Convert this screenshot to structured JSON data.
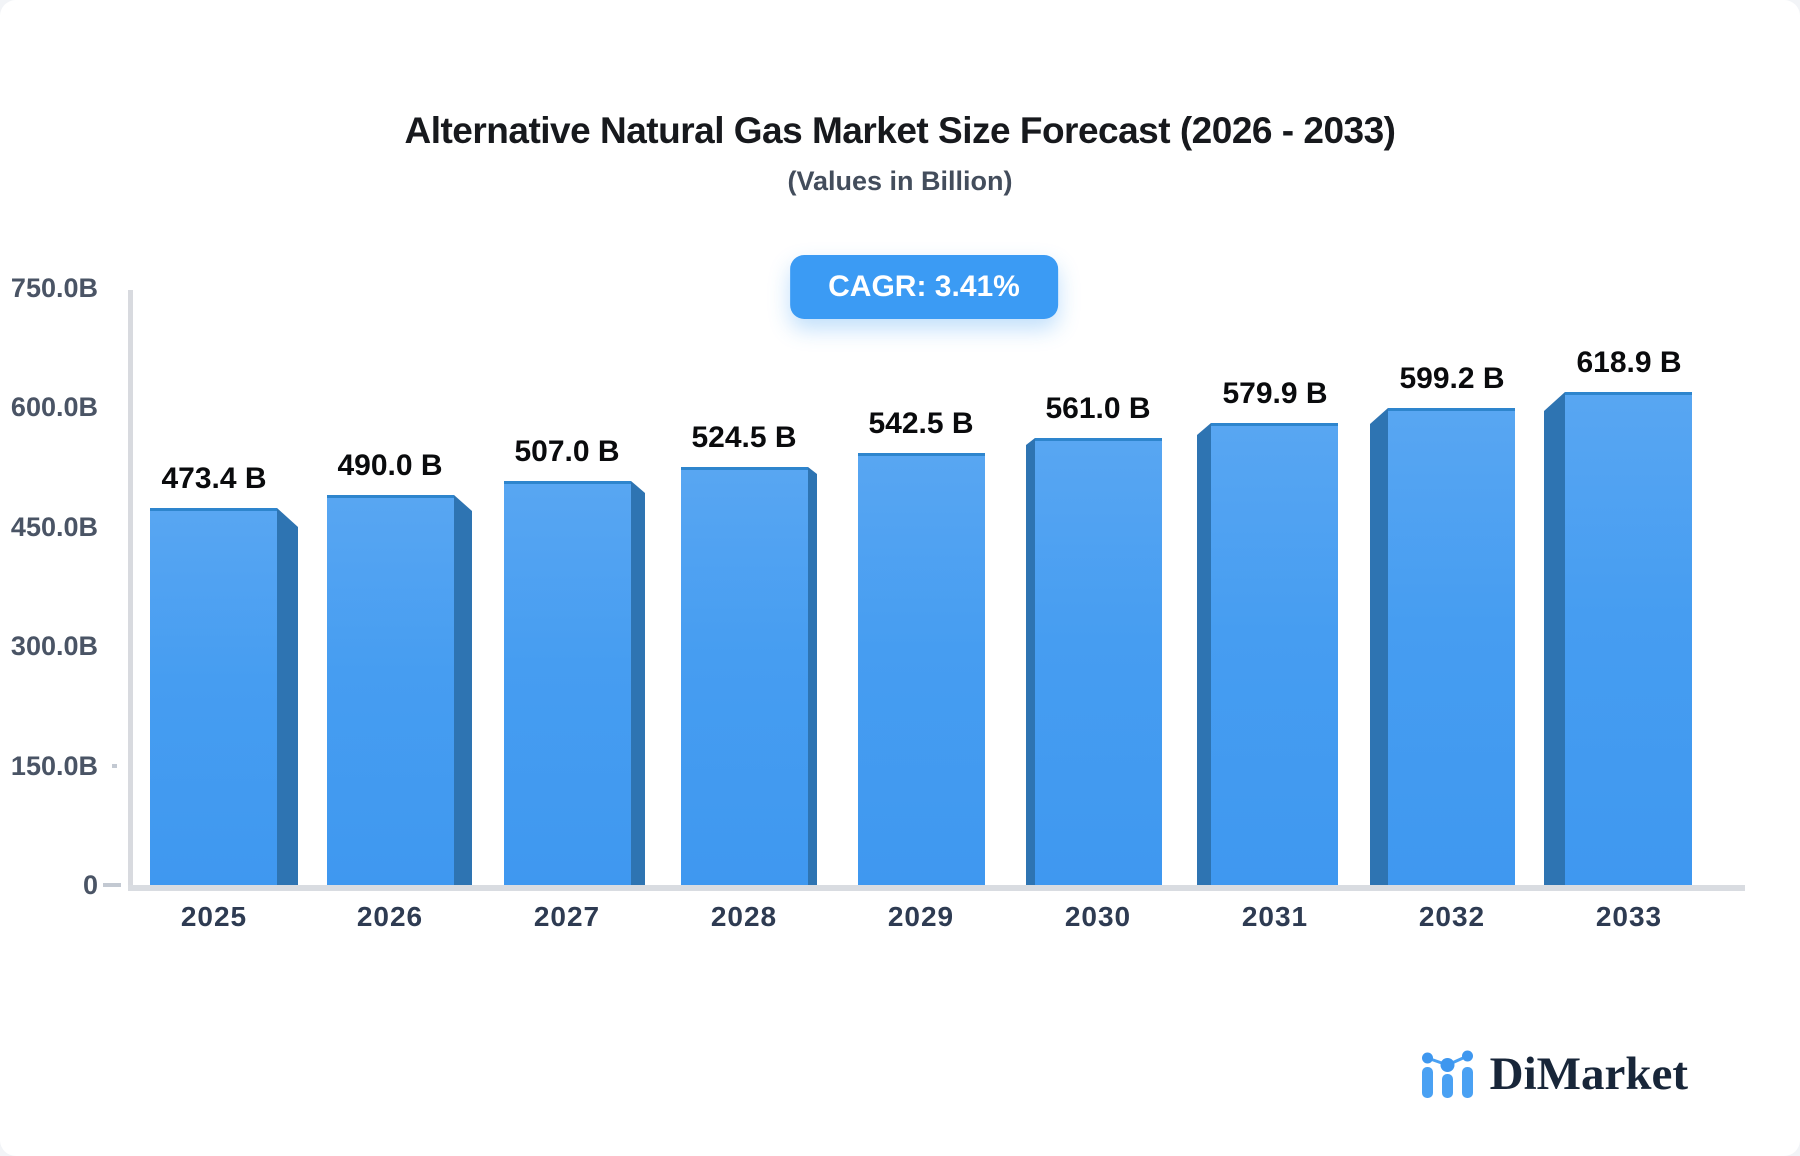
{
  "header": {
    "title": "Alternative Natural Gas Market Size Forecast (2026 - 2033)",
    "subtitle": "(Values in Billion)",
    "cagr_label": "CAGR: 3.41%"
  },
  "chart_data": {
    "type": "bar",
    "title": "Alternative Natural Gas Market Size Forecast (2026 - 2033)",
    "subtitle": "(Values in Billion)",
    "cagr": "3.41%",
    "categories": [
      "2025",
      "2026",
      "2027",
      "2028",
      "2029",
      "2030",
      "2031",
      "2032",
      "2033"
    ],
    "values": [
      473.4,
      490.0,
      507.0,
      524.5,
      542.5,
      561.0,
      579.9,
      599.2,
      618.9
    ],
    "value_labels": [
      "473.4 B",
      "490.0 B",
      "507.0 B",
      "524.5 B",
      "542.5 B",
      "561.0 B",
      "579.9 B",
      "599.2 B",
      "618.9 B"
    ],
    "y_ticks": [
      {
        "value": 0,
        "label": "0"
      },
      {
        "value": 150,
        "label": "150.0B"
      },
      {
        "value": 300,
        "label": "300.0B"
      },
      {
        "value": 450,
        "label": "450.0B"
      },
      {
        "value": 600,
        "label": "600.0B"
      },
      {
        "value": 750,
        "label": "750.0B"
      }
    ],
    "ylim": [
      0,
      750
    ],
    "xlabel": "",
    "ylabel": "",
    "grid": false,
    "legend": false,
    "style": "pseudo-3d bars, perspective side faces toward center bar",
    "colors": {
      "bar_face_top": "#58a6f2",
      "bar_face_bottom": "#3f98f0",
      "bar_top_edge": "#2e85cd",
      "bar_side": "#2e74b2",
      "axis_line": "#d8dadf",
      "y_tick_label": "#4a5465",
      "x_tick_label": "#2e3b52",
      "value_label": "#0a0b0d",
      "badge_background": "#3b9bf4",
      "badge_text": "#ffffff"
    }
  },
  "logo": {
    "text": "DiMarket",
    "icon": "mini-bar-chart-icon",
    "icon_color": "#4aa1f3",
    "text_color": "#182639"
  }
}
